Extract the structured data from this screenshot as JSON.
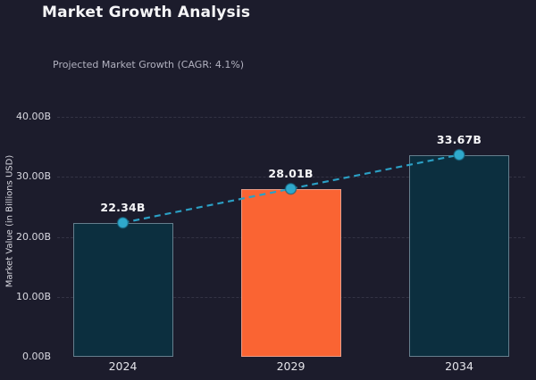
{
  "chart_data": {
    "type": "bar",
    "title": "Market Growth Analysis",
    "subtitle": "Projected Market Growth (CAGR: 4.1%)",
    "ylabel": "Market Value (in Billions USD)",
    "xlabel": "",
    "categories": [
      "2024",
      "2029",
      "2034"
    ],
    "values": [
      22.34,
      28.01,
      33.67
    ],
    "value_labels": [
      "22.34B",
      "28.01B",
      "33.67B"
    ],
    "ylim": [
      0,
      40
    ],
    "ytick_values": [
      0,
      10,
      20,
      30,
      40
    ],
    "ytick_labels": [
      "0.00B",
      "10.00B",
      "20.00B",
      "30.00B",
      "40.00B"
    ],
    "grid": true,
    "grid_style": "dashed-horizontal",
    "legend": false,
    "series": [
      {
        "name": "Market Value",
        "type": "bar",
        "values": [
          22.34,
          28.01,
          33.67
        ]
      },
      {
        "name": "Growth Trend",
        "type": "dashed-line-with-markers",
        "values": [
          22.34,
          28.01,
          33.67
        ]
      }
    ],
    "colors": {
      "background": "#1c1c2c",
      "bar_colors": [
        "#0c2f3f",
        "#fa6433",
        "#0c2f3f"
      ],
      "bar_teal": "#0c2f3f",
      "bar_orange": "#fa6433",
      "trend_line": "#2b9fc4",
      "marker": "#2fa9cc",
      "title_text": "#f5f5f7",
      "subtitle_text": "#b1b1bf",
      "axis_text": "#d8d8e0",
      "xtick_text": "#e4e4ea",
      "value_label_text": "#f6f6f8"
    }
  }
}
